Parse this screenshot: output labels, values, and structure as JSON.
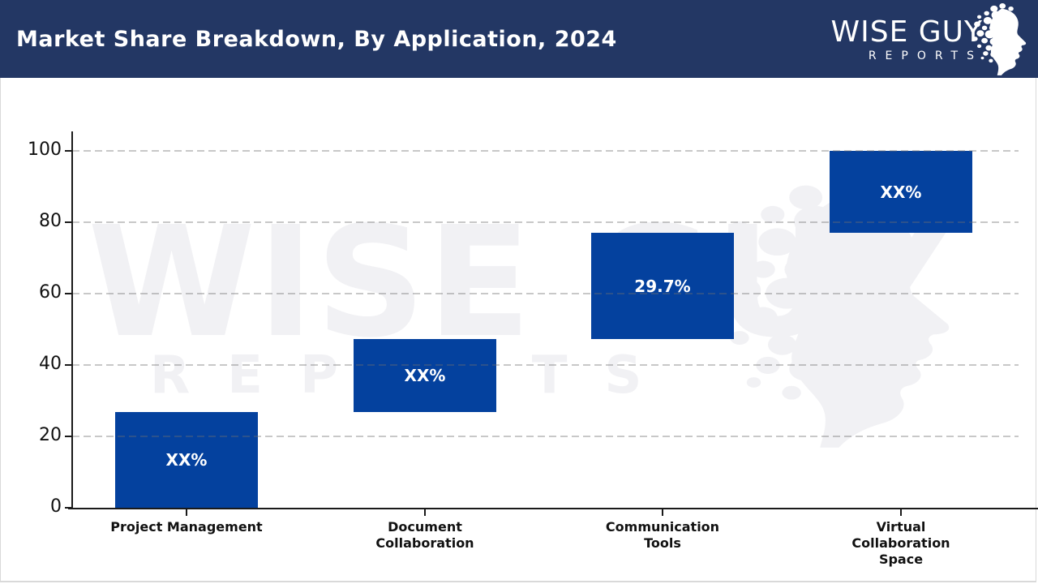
{
  "header": {
    "title": "Market Share Breakdown, By Application, 2024",
    "brand": {
      "line1": "WISE GUY",
      "line2": "REPORTS"
    },
    "bg_color": "#233764",
    "text_color": "#ffffff"
  },
  "watermark": {
    "line1": "WISE GUY",
    "line2": "REPORTS"
  },
  "colors": {
    "bar_blue": "#04419e",
    "header_navy": "#233764",
    "grid_rgba": "rgba(110,110,110,0.38)",
    "axis_black": "#1a1a1a",
    "watermark_gray": "#f1f1f4",
    "panel_border": "#d9d9d9"
  },
  "chart_data": {
    "type": "bar",
    "subtype": "waterfall",
    "title": "Market Share Breakdown, By Application, 2024",
    "categories": [
      "Project Management",
      "Document\nCollaboration",
      "Communication\nTools",
      "Virtual\nCollaboration\nSpace"
    ],
    "segments": [
      {
        "category": "Project Management",
        "start": 0,
        "end": 26.8,
        "value": 26.8,
        "label": "XX%"
      },
      {
        "category": "Document Collaboration",
        "start": 26.8,
        "end": 47.3,
        "value": 20.5,
        "label": "XX%"
      },
      {
        "category": "Communication Tools",
        "start": 47.3,
        "end": 77.0,
        "value": 29.7,
        "label": "29.7%"
      },
      {
        "category": "Virtual Collaboration Space",
        "start": 77.0,
        "end": 100,
        "value": 23.0,
        "label": "XX%"
      }
    ],
    "yticks": [
      0,
      20,
      40,
      60,
      80,
      100
    ],
    "ylim": [
      0,
      105
    ],
    "xlabel": "",
    "ylabel": "",
    "grid": true,
    "grid_style": "dashed",
    "legend": false,
    "bar_color": "#04419e",
    "bar_label_color": "#ffffff"
  }
}
